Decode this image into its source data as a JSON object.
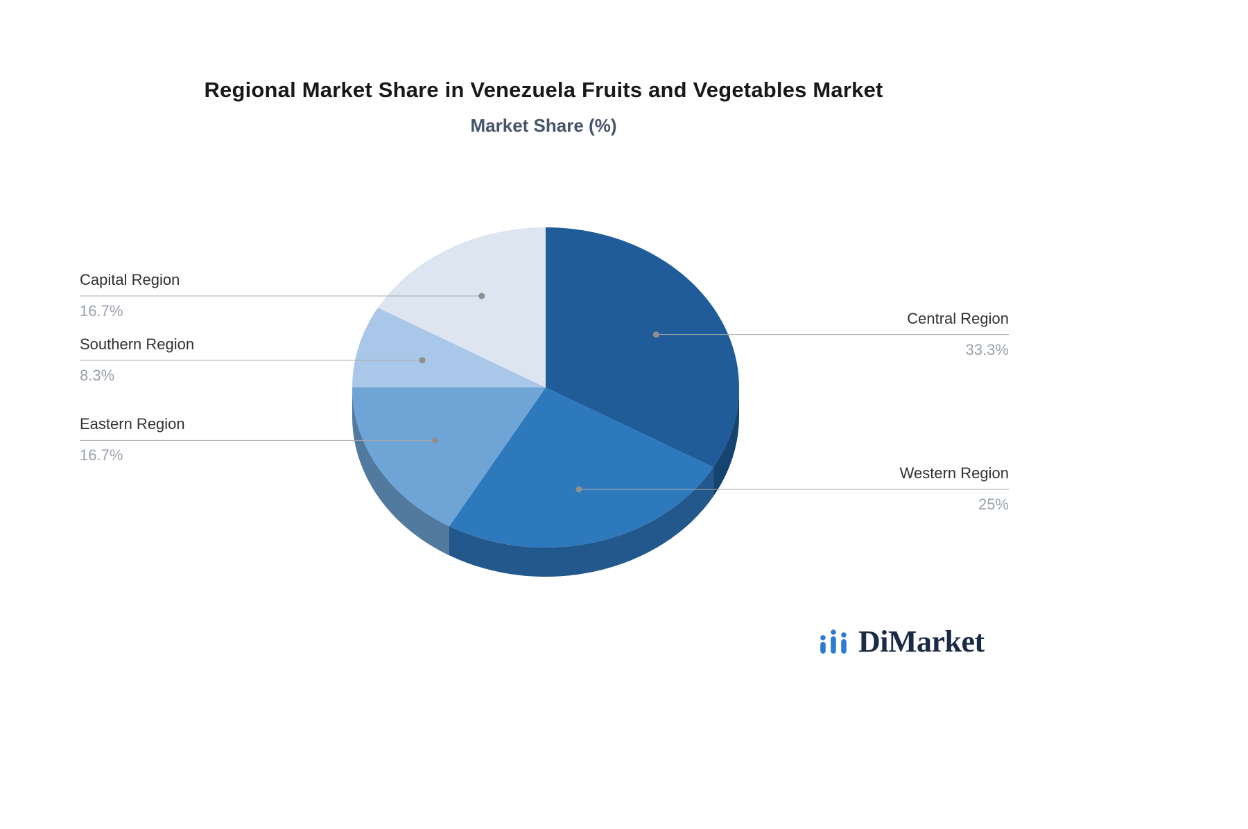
{
  "header": {
    "title": "Regional Market Share in Venezuela Fruits and Vegetables Market",
    "subtitle": "Market Share (%)"
  },
  "brand": {
    "name": "DiMarket",
    "icon": "bar-chart-icon",
    "icon_color": "#2e7cd2",
    "text_color": "#1b2b45"
  },
  "chart_data": {
    "type": "pie",
    "style": "3d",
    "title": "Regional Market Share in Venezuela Fruits and Vegetables Market",
    "subtitle": "Market Share (%)",
    "unit": "%",
    "start_angle_deg": 0,
    "direction": "clockwise",
    "legend": false,
    "categories": [
      "Central Region",
      "Western Region",
      "Eastern Region",
      "Southern Region",
      "Capital Region"
    ],
    "values": [
      33.3,
      25,
      16.7,
      8.3,
      16.7
    ],
    "slices": [
      {
        "label": "Central Region",
        "value": 33.3,
        "display": "33.3%",
        "color": "#1f5c99",
        "side": "right"
      },
      {
        "label": "Western Region",
        "value": 25,
        "display": "25%",
        "color": "#2e78bc",
        "side": "right"
      },
      {
        "label": "Eastern Region",
        "value": 16.7,
        "display": "16.7%",
        "color": "#6fa4d6",
        "side": "left"
      },
      {
        "label": "Southern Region",
        "value": 8.3,
        "display": "8.3%",
        "color": "#a9c7e8",
        "side": "left"
      },
      {
        "label": "Capital Region",
        "value": 16.7,
        "display": "16.7%",
        "color": "#dde5f0",
        "side": "left"
      }
    ],
    "leader_line_color": "#a8a8a8",
    "leader_dot_color": "#8e8e8e"
  }
}
